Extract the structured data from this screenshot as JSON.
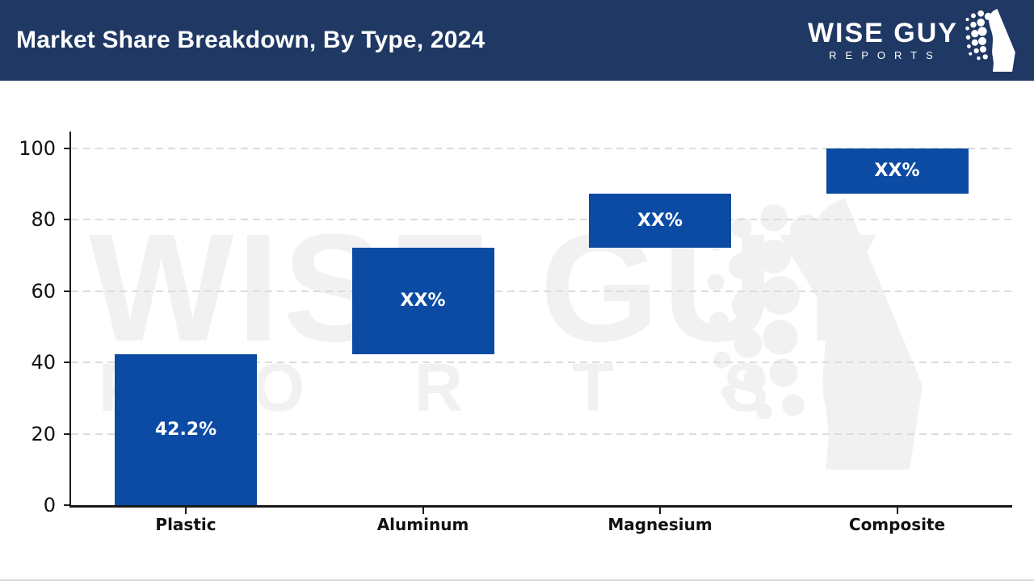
{
  "header": {
    "title": "Market Share Breakdown, By Type, 2024",
    "logo": {
      "name": "WISE GUY",
      "sub": "REPORTS",
      "icon": "dotted-head-icon"
    }
  },
  "watermark": {
    "line1": "WISE GUY",
    "line2": "P O R T S"
  },
  "chart_data": {
    "type": "bar",
    "subtype": "waterfall",
    "title": "Market Share Breakdown, By Type, 2024",
    "categories": [
      "Plastic",
      "Aluminum",
      "Magnesium",
      "Composite"
    ],
    "segments": [
      {
        "category": "Plastic",
        "start": 0,
        "end": 42.2,
        "label": "42.2%"
      },
      {
        "category": "Aluminum",
        "start": 42.2,
        "end": 72.2,
        "label": "XX%"
      },
      {
        "category": "Magnesium",
        "start": 72.2,
        "end": 87.3,
        "label": "XX%"
      },
      {
        "category": "Composite",
        "start": 87.3,
        "end": 100,
        "label": "XX%"
      }
    ],
    "yticks": [
      0,
      20,
      40,
      60,
      80,
      100
    ],
    "ylim": [
      0,
      104.6
    ],
    "xlabel": "",
    "ylabel": "",
    "grid": true,
    "legend": false,
    "colors": {
      "bar": "#0C4BA3",
      "bar_label": "#FFFFFF",
      "grid": "#DCDCDC",
      "axis": "#1A1A1A",
      "header": "#1F3864",
      "watermark": "#F1F1F1"
    }
  }
}
